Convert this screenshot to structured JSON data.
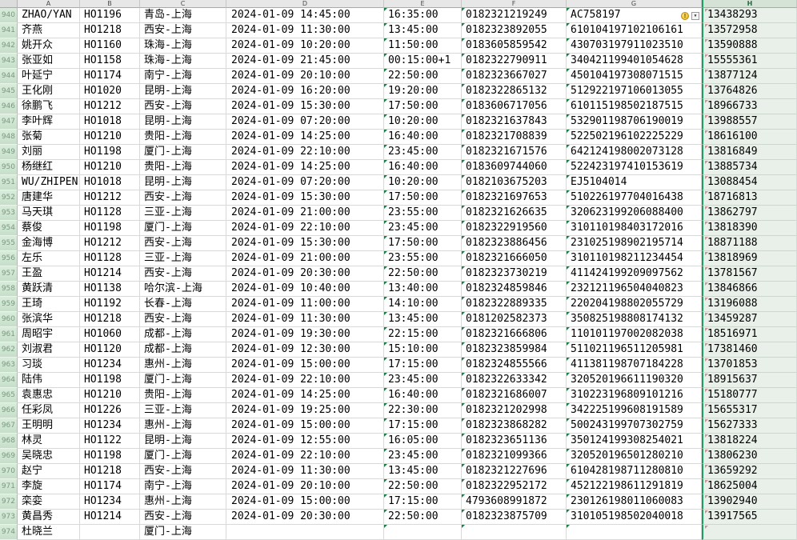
{
  "sheet": {
    "columns": [
      "A",
      "B",
      "C",
      "D",
      "E",
      "F",
      "G",
      "H"
    ],
    "selected_column": "H",
    "accent_colors": {
      "selection_green": "#17a05e",
      "row_header_green": "#cfe5d2",
      "warning_yellow": "#eec12e"
    },
    "icons": {
      "warning_icon": "!",
      "dropdown_icon": "▼"
    },
    "rows": [
      {
        "n": "940",
        "name": "ZHAO/YAN",
        "flight": "HO1196",
        "route": "青岛-上海",
        "dep": "2024-01-09 14:45:00",
        "arr": "16:35:00",
        "ticket": "0182321219249",
        "id": "AC758197",
        "phone": "13438293",
        "warn": true
      },
      {
        "n": "941",
        "name": "齐燕",
        "flight": "HO1218",
        "route": "西安-上海",
        "dep": "2024-01-09 11:30:00",
        "arr": "13:45:00",
        "ticket": "0182323892055",
        "id": "610104197102106161",
        "phone": "13572958"
      },
      {
        "n": "942",
        "name": "姚开众",
        "flight": "HO1160",
        "route": "珠海-上海",
        "dep": "2024-01-09 10:20:00",
        "arr": "11:50:00",
        "ticket": "0183605859542",
        "id": "430703197911023510",
        "phone": "13590888"
      },
      {
        "n": "943",
        "name": "张亚如",
        "flight": "HO1158",
        "route": "珠海-上海",
        "dep": "2024-01-09 21:45:00",
        "arr": "00:15:00+1",
        "ticket": "0182322790911",
        "id": "340421199401054628",
        "phone": "15555361"
      },
      {
        "n": "944",
        "name": "叶延宁",
        "flight": "HO1174",
        "route": "南宁-上海",
        "dep": "2024-01-09 20:10:00",
        "arr": "22:50:00",
        "ticket": "0182323667027",
        "id": "450104197308071515",
        "phone": "13877124"
      },
      {
        "n": "945",
        "name": "王化刚",
        "flight": "HO1020",
        "route": "昆明-上海",
        "dep": "2024-01-09 16:20:00",
        "arr": "19:20:00",
        "ticket": "0182322865132",
        "id": "512922197106013055",
        "phone": "13764826"
      },
      {
        "n": "946",
        "name": "徐鹏飞",
        "flight": "HO1212",
        "route": "西安-上海",
        "dep": "2024-01-09 15:30:00",
        "arr": "17:50:00",
        "ticket": "0183606717056",
        "id": "610115198502187515",
        "phone": "18966733"
      },
      {
        "n": "947",
        "name": "李叶辉",
        "flight": "HO1018",
        "route": "昆明-上海",
        "dep": "2024-01-09 07:20:00",
        "arr": "10:20:00",
        "ticket": "0182321637843",
        "id": "532901198706190019",
        "phone": "13988557"
      },
      {
        "n": "948",
        "name": "张菊",
        "flight": "HO1210",
        "route": "贵阳-上海",
        "dep": "2024-01-09 14:25:00",
        "arr": "16:40:00",
        "ticket": "0182321708839",
        "id": "522502196102225229",
        "phone": "18616100"
      },
      {
        "n": "949",
        "name": "刘丽",
        "flight": "HO1198",
        "route": "厦门-上海",
        "dep": "2024-01-09 22:10:00",
        "arr": "23:45:00",
        "ticket": "0182321671576",
        "id": "642124198002073128",
        "phone": "13816849"
      },
      {
        "n": "950",
        "name": "杨继红",
        "flight": "HO1210",
        "route": "贵阳-上海",
        "dep": "2024-01-09 14:25:00",
        "arr": "16:40:00",
        "ticket": "0183609744060",
        "id": "522423197410153619",
        "phone": "13885734"
      },
      {
        "n": "951",
        "name": "WU/ZHIPEN",
        "flight": "HO1018",
        "route": "昆明-上海",
        "dep": "2024-01-09 07:20:00",
        "arr": "10:20:00",
        "ticket": "0182103675203",
        "id": "EJ5104014",
        "phone": "13088454"
      },
      {
        "n": "952",
        "name": "唐建华",
        "flight": "HO1212",
        "route": "西安-上海",
        "dep": "2024-01-09 15:30:00",
        "arr": "17:50:00",
        "ticket": "0182321697653",
        "id": "510226197704016438",
        "phone": "18716813"
      },
      {
        "n": "953",
        "name": "马天琪",
        "flight": "HO1128",
        "route": "三亚-上海",
        "dep": "2024-01-09 21:00:00",
        "arr": "23:55:00",
        "ticket": "0182321626635",
        "id": "320623199206088400",
        "phone": "13862797"
      },
      {
        "n": "954",
        "name": "蔡俊",
        "flight": "HO1198",
        "route": "厦门-上海",
        "dep": "2024-01-09 22:10:00",
        "arr": "23:45:00",
        "ticket": "0182322919560",
        "id": "310110198403172016",
        "phone": "13818390"
      },
      {
        "n": "955",
        "name": "金海博",
        "flight": "HO1212",
        "route": "西安-上海",
        "dep": "2024-01-09 15:30:00",
        "arr": "17:50:00",
        "ticket": "0182323886456",
        "id": "231025198902195714",
        "phone": "18871188"
      },
      {
        "n": "956",
        "name": "左乐",
        "flight": "HO1128",
        "route": "三亚-上海",
        "dep": "2024-01-09 21:00:00",
        "arr": "23:55:00",
        "ticket": "0182321666050",
        "id": "310110198211234454",
        "phone": "13818969"
      },
      {
        "n": "957",
        "name": "王盈",
        "flight": "HO1214",
        "route": "西安-上海",
        "dep": "2024-01-09 20:30:00",
        "arr": "22:50:00",
        "ticket": "0182323730219",
        "id": "411424199209097562",
        "phone": "13781567"
      },
      {
        "n": "958",
        "name": "黄跃清",
        "flight": "HO1138",
        "route": "哈尔滨-上海",
        "dep": "2024-01-09 10:40:00",
        "arr": "13:40:00",
        "ticket": "0182324859846",
        "id": "232121196504040823",
        "phone": "13846866"
      },
      {
        "n": "959",
        "name": "王琦",
        "flight": "HO1192",
        "route": "长春-上海",
        "dep": "2024-01-09 11:00:00",
        "arr": "14:10:00",
        "ticket": "0182322889335",
        "id": "220204198802055729",
        "phone": "13196088"
      },
      {
        "n": "960",
        "name": "张滨华",
        "flight": "HO1218",
        "route": "西安-上海",
        "dep": "2024-01-09 11:30:00",
        "arr": "13:45:00",
        "ticket": "0181202582373",
        "id": "350825198808174132",
        "phone": "13459287"
      },
      {
        "n": "961",
        "name": "周昭宇",
        "flight": "HO1060",
        "route": "成都-上海",
        "dep": "2024-01-09 19:30:00",
        "arr": "22:15:00",
        "ticket": "0182321666806",
        "id": "110101197002082038",
        "phone": "18516971"
      },
      {
        "n": "962",
        "name": "刘淑君",
        "flight": "HO1120",
        "route": "成都-上海",
        "dep": "2024-01-09 12:30:00",
        "arr": "15:10:00",
        "ticket": "0182323859984",
        "id": "511021196511205981",
        "phone": "17381460"
      },
      {
        "n": "963",
        "name": "习琰",
        "flight": "HO1234",
        "route": "惠州-上海",
        "dep": "2024-01-09 15:00:00",
        "arr": "17:15:00",
        "ticket": "0182324855566",
        "id": "411381198707184228",
        "phone": "13701853"
      },
      {
        "n": "964",
        "name": "陆伟",
        "flight": "HO1198",
        "route": "厦门-上海",
        "dep": "2024-01-09 22:10:00",
        "arr": "23:45:00",
        "ticket": "0182322633342",
        "id": "320520196611190320",
        "phone": "18915637"
      },
      {
        "n": "965",
        "name": "袁惠忠",
        "flight": "HO1210",
        "route": "贵阳-上海",
        "dep": "2024-01-09 14:25:00",
        "arr": "16:40:00",
        "ticket": "0182321686007",
        "id": "310223196809101216",
        "phone": "15180777"
      },
      {
        "n": "966",
        "name": "任彩凤",
        "flight": "HO1226",
        "route": "三亚-上海",
        "dep": "2024-01-09 19:25:00",
        "arr": "22:30:00",
        "ticket": "0182321202998",
        "id": "342225199608191589",
        "phone": "15655317"
      },
      {
        "n": "967",
        "name": "王明明",
        "flight": "HO1234",
        "route": "惠州-上海",
        "dep": "2024-01-09 15:00:00",
        "arr": "17:15:00",
        "ticket": "0182323868282",
        "id": "500243199707302759",
        "phone": "15627333"
      },
      {
        "n": "968",
        "name": "林灵",
        "flight": "HO1122",
        "route": "昆明-上海",
        "dep": "2024-01-09 12:55:00",
        "arr": "16:05:00",
        "ticket": "0182323651136",
        "id": "350124199308254021",
        "phone": "13818224"
      },
      {
        "n": "969",
        "name": "吴晓忠",
        "flight": "HO1198",
        "route": "厦门-上海",
        "dep": "2024-01-09 22:10:00",
        "arr": "23:45:00",
        "ticket": "0182321099366",
        "id": "320520196501280210",
        "phone": "13806230"
      },
      {
        "n": "970",
        "name": "赵宁",
        "flight": "HO1218",
        "route": "西安-上海",
        "dep": "2024-01-09 11:30:00",
        "arr": "13:45:00",
        "ticket": "0182321227696",
        "id": "610428198711280810",
        "phone": "13659292"
      },
      {
        "n": "971",
        "name": "李旋",
        "flight": "HO1174",
        "route": "南宁-上海",
        "dep": "2024-01-09 20:10:00",
        "arr": "22:50:00",
        "ticket": "0182322952172",
        "id": "452122198611291819",
        "phone": "18625004"
      },
      {
        "n": "972",
        "name": "栾娈",
        "flight": "HO1234",
        "route": "惠州-上海",
        "dep": "2024-01-09 15:00:00",
        "arr": "17:15:00",
        "ticket": "4793608991872",
        "id": "230126198011060083",
        "phone": "13902940"
      },
      {
        "n": "973",
        "name": "黄昌秀",
        "flight": "HO1214",
        "route": "西安-上海",
        "dep": "2024-01-09 20:30:00",
        "arr": "22:50:00",
        "ticket": "0182323875709",
        "id": "310105198502040018",
        "phone": "13917565"
      },
      {
        "n": "974",
        "name": "杜晓兰",
        "flight": "",
        "route": "厦门-上海",
        "dep": "",
        "arr": "",
        "ticket": "",
        "id": "",
        "phone": ""
      }
    ]
  }
}
